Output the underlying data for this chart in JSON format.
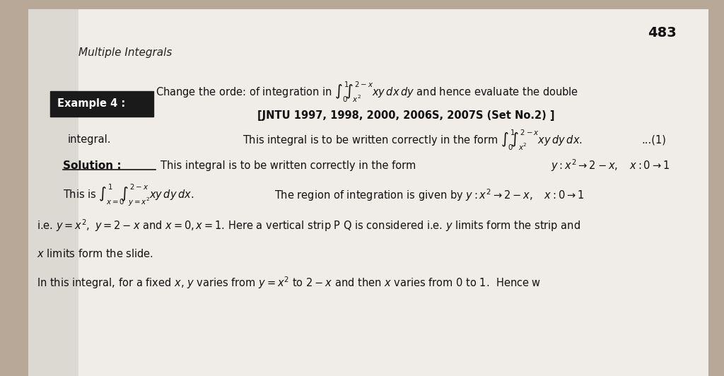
{
  "page_number": "483",
  "bg_color_outer": "#b8a898",
  "bg_color_page": "#f0ede8",
  "section_title": "Multiple Integrals",
  "example_label": "Example 4 :",
  "line2": "[JNTU 1997, 1998, 2000, 2006S, 2007S (Set No.2) ]",
  "line3_num": "...(1)",
  "solution_label": "Solution :"
}
